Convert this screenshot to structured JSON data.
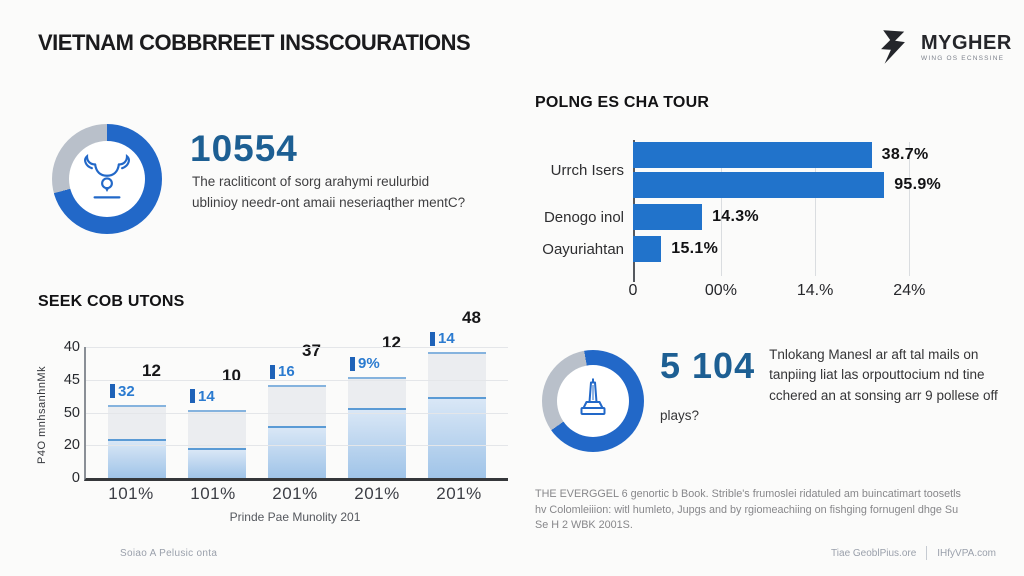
{
  "page": {
    "title": "VIETNAM COBBRREET INSSCOURATIONS"
  },
  "logo": {
    "name": "MYGHER",
    "tagline": "WING OS ECNSSINE"
  },
  "sections": {
    "left": "SEEK COB UTONS",
    "right": "POLNG ES CHA TOUR"
  },
  "stats": [
    {
      "value": "10554",
      "desc_lines": [
        "The racliticont of sorg arahymi reulurbid",
        "ublinioy needr-ont amaii neseriaqther mentC?"
      ]
    },
    {
      "value": "5 104",
      "desc": "Tnlokang Manesl ar aft tal mails on tanpiing liat las orpouttocium nd tine cchered an at sonsing arr 9 pollese off plays?"
    }
  ],
  "donuts": [
    {
      "icon": "buffalo-pin-icon",
      "segments": [
        [
          "#2268c8",
          0,
          255
        ],
        [
          "#b9c0ca",
          255,
          360
        ]
      ]
    },
    {
      "icon": "monument-icon",
      "segments": [
        [
          "#2268c8",
          0,
          235
        ],
        [
          "#b9c0ca",
          235,
          350
        ],
        [
          "#2268c8",
          350,
          360
        ]
      ]
    }
  ],
  "chart_data": [
    {
      "type": "bar",
      "title": "SEEK COB UTONS",
      "xlabel": "Prinde Pae Munolity 201",
      "ylabel": "P4O mnhsanhnMk",
      "categories": [
        "101%",
        "101%",
        "201%",
        "201%",
        "201%"
      ],
      "ytick_labels": [
        "40",
        "45",
        "50",
        "20",
        "0"
      ],
      "series": [
        {
          "name": "blue-gradient-bottom",
          "heights_pct": [
            28,
            21,
            38,
            52,
            60
          ]
        },
        {
          "name": "gray-top",
          "heights_pct": [
            28,
            31,
            33,
            25,
            36
          ]
        }
      ],
      "total_pct": [
        56,
        52,
        71,
        77,
        96
      ],
      "annotations": [
        {
          "black": "12",
          "blue": "32"
        },
        {
          "black": "10",
          "blue": "14"
        },
        {
          "black": "37",
          "blue": "16"
        },
        {
          "black": "12",
          "blue": "9%"
        },
        {
          "black": "48",
          "blue": "14"
        }
      ],
      "grid": true
    },
    {
      "type": "hbar",
      "title": "POLNG ES CHA TOUR",
      "rows": [
        {
          "label": "Urrch Isers",
          "bars": [
            {
              "value_label": "38.7%",
              "length_pct": 76
            },
            {
              "value_label": "95.9%",
              "length_pct": 80
            }
          ]
        },
        {
          "label": "Denogo inol",
          "bars": [
            {
              "value_label": "14.3%",
              "length_pct": 22
            }
          ]
        },
        {
          "label": "Oayuriahtan",
          "bars": [
            {
              "value_label": "15.1%",
              "length_pct": 9
            }
          ]
        }
      ],
      "xtick_labels": [
        "0",
        "00%",
        "14.%",
        "24%"
      ],
      "xtick_pct": [
        0,
        28,
        58,
        88
      ],
      "bar_color": "#2173cb",
      "grid": true,
      "legend": "none"
    }
  ],
  "footnote": "THE EVERGGEL 6 genortic b Book. Strible's frumoslei ridatuled am buincatimart toosetls hv Colomleiiion: witl humleto, Jupgs and by rgiomeachiing on fishging fornugenl dhge Su Se H 2 WBK 2001S.",
  "footer": {
    "left": "Soiao A Pelusic onta",
    "links": [
      "Tiae GeoblPius.ore",
      "IHfyVPA.com"
    ]
  },
  "colors": {
    "accent_blue": "#2173cb",
    "donut_blue": "#2268c8",
    "donut_gray": "#b9c0ca",
    "stat_navy": "#1d5f93",
    "title_dark": "#1b1b1d"
  }
}
